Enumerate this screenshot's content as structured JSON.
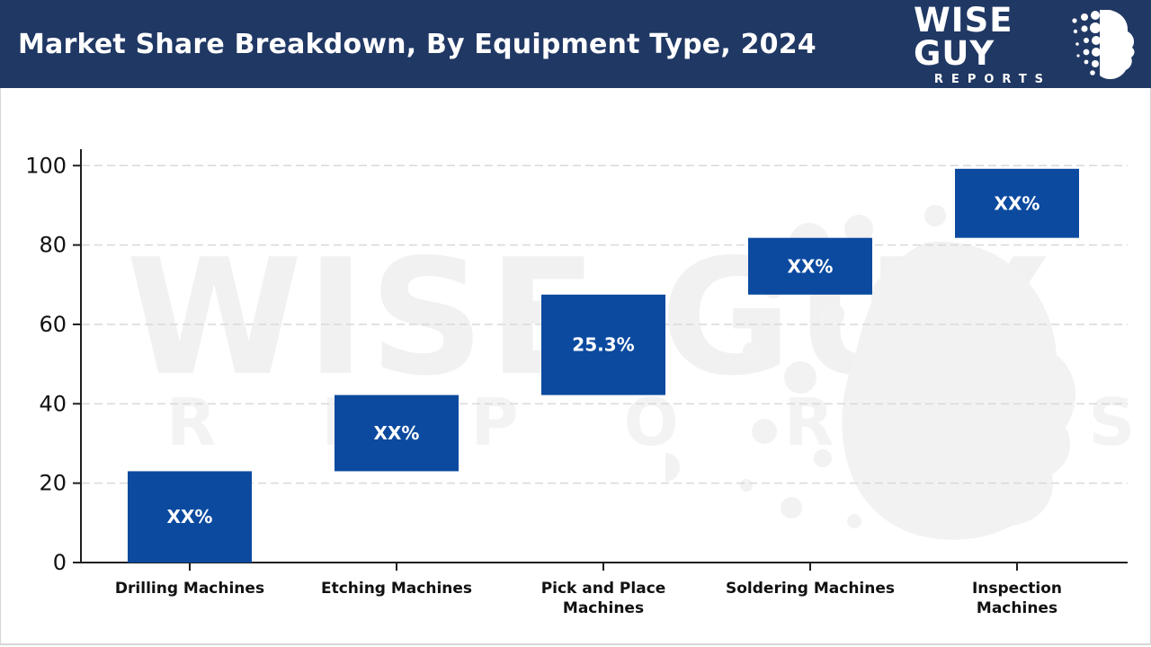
{
  "header": {
    "title": "Market Share Breakdown, By Equipment Type, 2024",
    "logo": {
      "line1": "WISE GUY",
      "line2": "REPORTS",
      "face_icon": "dotted-profile-face"
    }
  },
  "watermark": {
    "line1": "WISE GUY",
    "line2": "R E P O R T S"
  },
  "colors": {
    "header_bg": "#203864",
    "bar_blue": "#0b4a9f",
    "axis": "#1f1f1f",
    "gridline": "#d9d9d9",
    "watermark": "#f1f1f1",
    "frame_border": "#d7d7d7",
    "title_text": "#ffffff",
    "bar_label_text": "#ffffff",
    "tick_text": "#111111"
  },
  "chart_data": {
    "type": "bar",
    "subtype": "floating-waterfall",
    "title": "Market Share Breakdown, By Equipment Type, 2024",
    "categories": [
      "Drilling Machines",
      "Etching Machines",
      "Pick and Place Machines",
      "Soldering Machines",
      "Inspection Machines"
    ],
    "category_display_lines": [
      [
        "Drilling Machines"
      ],
      [
        "Etching Machines"
      ],
      [
        "Pick and Place",
        "Machines"
      ],
      [
        "Soldering Machines"
      ],
      [
        "Inspection",
        "Machines"
      ]
    ],
    "bars": [
      {
        "label": "XX%",
        "base": 0,
        "top": 23
      },
      {
        "label": "XX%",
        "base": 23,
        "top": 42.2
      },
      {
        "label": "25.3%",
        "base": 42.2,
        "top": 67.5
      },
      {
        "label": "XX%",
        "base": 67.5,
        "top": 81.8
      },
      {
        "label": "XX%",
        "base": 81.8,
        "top": 99.2
      }
    ],
    "bar_color": "#0b4a9f",
    "xlabel": "",
    "ylabel": "",
    "ylim": [
      0,
      105
    ],
    "yticks": [
      0,
      20,
      40,
      60,
      80,
      100
    ],
    "grid": "horizontal-dashed",
    "legend": null
  }
}
